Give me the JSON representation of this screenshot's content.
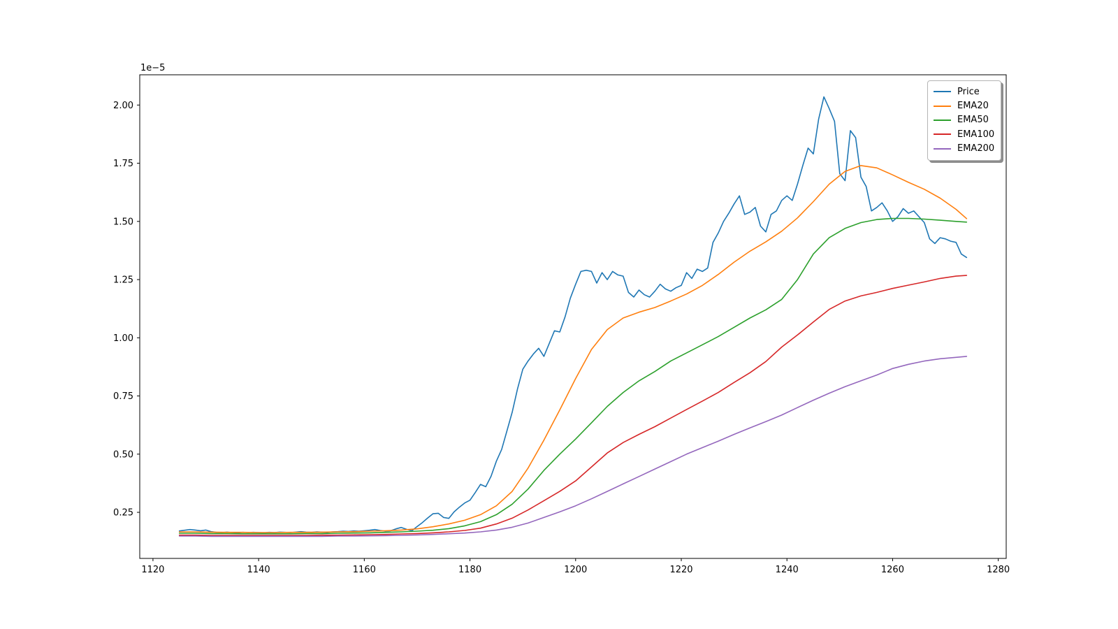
{
  "figure": {
    "background": "#ffffff"
  },
  "axes": {
    "offset_label": "1e−5",
    "xlim": [
      1117.5,
      1281.5
    ],
    "ylim": [
      0.052,
      2.13
    ],
    "x_ticks": [
      1120,
      1140,
      1160,
      1180,
      1200,
      1220,
      1240,
      1260,
      1280
    ],
    "y_ticks": [
      0.25,
      0.5,
      0.75,
      1.0,
      1.25,
      1.5,
      1.75,
      2.0
    ],
    "spine_color": "#000000",
    "tick_color": "#000000"
  },
  "legend": {
    "entries": [
      "Price",
      "EMA20",
      "EMA50",
      "EMA100",
      "EMA200"
    ]
  },
  "chart_data": {
    "type": "line",
    "title": "",
    "xlabel": "",
    "ylabel": "",
    "y_unit_multiplier": "1e-5",
    "grid": false,
    "legend_position": "upper right",
    "series": [
      {
        "name": "Price",
        "color": "#1f77b4",
        "x": [
          1125,
          1126,
          1127,
          1128,
          1129,
          1130,
          1131,
          1132,
          1133,
          1134,
          1135,
          1136,
          1137,
          1138,
          1139,
          1140,
          1141,
          1142,
          1143,
          1144,
          1145,
          1146,
          1147,
          1148,
          1149,
          1150,
          1151,
          1152,
          1153,
          1154,
          1155,
          1156,
          1157,
          1158,
          1159,
          1160,
          1161,
          1162,
          1163,
          1164,
          1165,
          1166,
          1167,
          1168,
          1169,
          1170,
          1171,
          1172,
          1173,
          1174,
          1175,
          1176,
          1177,
          1178,
          1179,
          1180,
          1181,
          1182,
          1183,
          1184,
          1185,
          1186,
          1187,
          1188,
          1189,
          1190,
          1191,
          1192,
          1193,
          1194,
          1195,
          1196,
          1197,
          1198,
          1199,
          1200,
          1201,
          1202,
          1203,
          1204,
          1205,
          1206,
          1207,
          1208,
          1209,
          1210,
          1211,
          1212,
          1213,
          1214,
          1215,
          1216,
          1217,
          1218,
          1219,
          1220,
          1221,
          1222,
          1223,
          1224,
          1225,
          1226,
          1227,
          1228,
          1229,
          1230,
          1231,
          1232,
          1233,
          1234,
          1235,
          1236,
          1237,
          1238,
          1239,
          1240,
          1241,
          1242,
          1243,
          1244,
          1245,
          1246,
          1247,
          1248,
          1249,
          1250,
          1251,
          1252,
          1253,
          1254,
          1255,
          1256,
          1257,
          1258,
          1259,
          1260,
          1261,
          1262,
          1263,
          1264,
          1265,
          1266,
          1267,
          1268,
          1269,
          1270,
          1271,
          1272,
          1273,
          1274
        ],
        "y": [
          0.17,
          0.173,
          0.176,
          0.174,
          0.171,
          0.174,
          0.167,
          0.164,
          0.163,
          0.165,
          0.163,
          0.162,
          0.164,
          0.163,
          0.164,
          0.163,
          0.162,
          0.164,
          0.163,
          0.165,
          0.164,
          0.163,
          0.165,
          0.167,
          0.165,
          0.164,
          0.166,
          0.165,
          0.164,
          0.166,
          0.167,
          0.169,
          0.168,
          0.17,
          0.169,
          0.171,
          0.173,
          0.176,
          0.172,
          0.169,
          0.171,
          0.179,
          0.185,
          0.177,
          0.171,
          0.189,
          0.206,
          0.226,
          0.244,
          0.246,
          0.228,
          0.224,
          0.252,
          0.272,
          0.29,
          0.302,
          0.335,
          0.37,
          0.36,
          0.405,
          0.47,
          0.52,
          0.6,
          0.68,
          0.78,
          0.865,
          0.9,
          0.93,
          0.955,
          0.92,
          0.975,
          1.03,
          1.025,
          1.09,
          1.17,
          1.23,
          1.285,
          1.29,
          1.285,
          1.235,
          1.28,
          1.25,
          1.285,
          1.27,
          1.265,
          1.195,
          1.175,
          1.205,
          1.185,
          1.175,
          1.2,
          1.23,
          1.21,
          1.2,
          1.215,
          1.225,
          1.28,
          1.255,
          1.295,
          1.285,
          1.3,
          1.41,
          1.45,
          1.5,
          1.535,
          1.575,
          1.61,
          1.53,
          1.54,
          1.56,
          1.48,
          1.455,
          1.53,
          1.545,
          1.59,
          1.61,
          1.59,
          1.66,
          1.74,
          1.815,
          1.79,
          1.94,
          2.035,
          1.985,
          1.93,
          1.705,
          1.675,
          1.89,
          1.86,
          1.69,
          1.65,
          1.545,
          1.56,
          1.58,
          1.545,
          1.5,
          1.52,
          1.555,
          1.535,
          1.545,
          1.52,
          1.495,
          1.425,
          1.405,
          1.43,
          1.425,
          1.415,
          1.41,
          1.36,
          1.345
        ]
      },
      {
        "name": "EMA20",
        "color": "#ff7f0e",
        "x": [
          1125,
          1128,
          1131,
          1134,
          1137,
          1140,
          1143,
          1146,
          1149,
          1152,
          1155,
          1158,
          1161,
          1164,
          1167,
          1170,
          1173,
          1176,
          1179,
          1182,
          1185,
          1188,
          1191,
          1194,
          1197,
          1200,
          1203,
          1206,
          1209,
          1212,
          1215,
          1218,
          1221,
          1224,
          1227,
          1230,
          1233,
          1236,
          1239,
          1242,
          1245,
          1248,
          1251,
          1254,
          1257,
          1260,
          1263,
          1266,
          1269,
          1272,
          1274
        ],
        "y": [
          0.166,
          0.166,
          0.165,
          0.164,
          0.164,
          0.163,
          0.163,
          0.164,
          0.164,
          0.165,
          0.166,
          0.167,
          0.169,
          0.171,
          0.174,
          0.179,
          0.188,
          0.2,
          0.216,
          0.24,
          0.278,
          0.34,
          0.44,
          0.56,
          0.69,
          0.825,
          0.95,
          1.035,
          1.085,
          1.11,
          1.13,
          1.158,
          1.188,
          1.225,
          1.272,
          1.325,
          1.372,
          1.412,
          1.458,
          1.515,
          1.585,
          1.66,
          1.715,
          1.74,
          1.73,
          1.7,
          1.668,
          1.638,
          1.6,
          1.552,
          1.512
        ]
      },
      {
        "name": "EMA50",
        "color": "#2ca02c",
        "x": [
          1125,
          1128,
          1131,
          1134,
          1137,
          1140,
          1143,
          1146,
          1149,
          1152,
          1155,
          1158,
          1161,
          1164,
          1167,
          1170,
          1173,
          1176,
          1179,
          1182,
          1185,
          1188,
          1191,
          1194,
          1197,
          1200,
          1203,
          1206,
          1209,
          1212,
          1215,
          1218,
          1221,
          1224,
          1227,
          1230,
          1233,
          1236,
          1239,
          1242,
          1245,
          1248,
          1251,
          1254,
          1257,
          1260,
          1263,
          1266,
          1269,
          1272,
          1274
        ],
        "y": [
          0.16,
          0.16,
          0.159,
          0.159,
          0.158,
          0.158,
          0.158,
          0.158,
          0.159,
          0.159,
          0.16,
          0.161,
          0.162,
          0.164,
          0.166,
          0.169,
          0.173,
          0.18,
          0.192,
          0.21,
          0.24,
          0.285,
          0.35,
          0.43,
          0.5,
          0.565,
          0.635,
          0.705,
          0.765,
          0.815,
          0.855,
          0.9,
          0.935,
          0.97,
          1.005,
          1.045,
          1.085,
          1.12,
          1.165,
          1.25,
          1.36,
          1.43,
          1.47,
          1.495,
          1.508,
          1.513,
          1.513,
          1.51,
          1.505,
          1.5,
          1.497
        ]
      },
      {
        "name": "EMA100",
        "color": "#d62728",
        "x": [
          1125,
          1128,
          1131,
          1134,
          1137,
          1140,
          1143,
          1146,
          1149,
          1152,
          1155,
          1158,
          1161,
          1164,
          1167,
          1170,
          1173,
          1176,
          1179,
          1182,
          1185,
          1188,
          1191,
          1194,
          1197,
          1200,
          1203,
          1206,
          1209,
          1212,
          1215,
          1218,
          1221,
          1224,
          1227,
          1230,
          1233,
          1236,
          1239,
          1242,
          1245,
          1248,
          1251,
          1254,
          1257,
          1260,
          1263,
          1266,
          1269,
          1272,
          1274
        ],
        "y": [
          0.152,
          0.152,
          0.151,
          0.151,
          0.151,
          0.151,
          0.151,
          0.151,
          0.151,
          0.152,
          0.152,
          0.153,
          0.154,
          0.155,
          0.157,
          0.159,
          0.162,
          0.166,
          0.172,
          0.182,
          0.2,
          0.225,
          0.26,
          0.3,
          0.34,
          0.385,
          0.445,
          0.505,
          0.55,
          0.585,
          0.618,
          0.655,
          0.692,
          0.728,
          0.765,
          0.808,
          0.85,
          0.898,
          0.96,
          1.012,
          1.068,
          1.122,
          1.158,
          1.18,
          1.195,
          1.212,
          1.226,
          1.24,
          1.255,
          1.265,
          1.268
        ]
      },
      {
        "name": "EMA200",
        "color": "#9467bd",
        "x": [
          1125,
          1128,
          1131,
          1134,
          1137,
          1140,
          1143,
          1146,
          1149,
          1152,
          1155,
          1158,
          1161,
          1164,
          1167,
          1170,
          1173,
          1176,
          1179,
          1182,
          1185,
          1188,
          1191,
          1194,
          1197,
          1200,
          1203,
          1206,
          1209,
          1212,
          1215,
          1218,
          1221,
          1224,
          1227,
          1230,
          1233,
          1236,
          1239,
          1242,
          1245,
          1248,
          1251,
          1254,
          1257,
          1260,
          1263,
          1266,
          1269,
          1272,
          1274
        ],
        "y": [
          0.148,
          0.148,
          0.147,
          0.147,
          0.147,
          0.147,
          0.147,
          0.147,
          0.147,
          0.147,
          0.148,
          0.148,
          0.149,
          0.15,
          0.151,
          0.153,
          0.155,
          0.158,
          0.161,
          0.166,
          0.174,
          0.186,
          0.204,
          0.228,
          0.252,
          0.278,
          0.308,
          0.34,
          0.372,
          0.404,
          0.436,
          0.468,
          0.5,
          0.528,
          0.556,
          0.585,
          0.613,
          0.64,
          0.668,
          0.7,
          0.732,
          0.762,
          0.79,
          0.815,
          0.84,
          0.868,
          0.886,
          0.9,
          0.91,
          0.916,
          0.92
        ]
      }
    ]
  }
}
